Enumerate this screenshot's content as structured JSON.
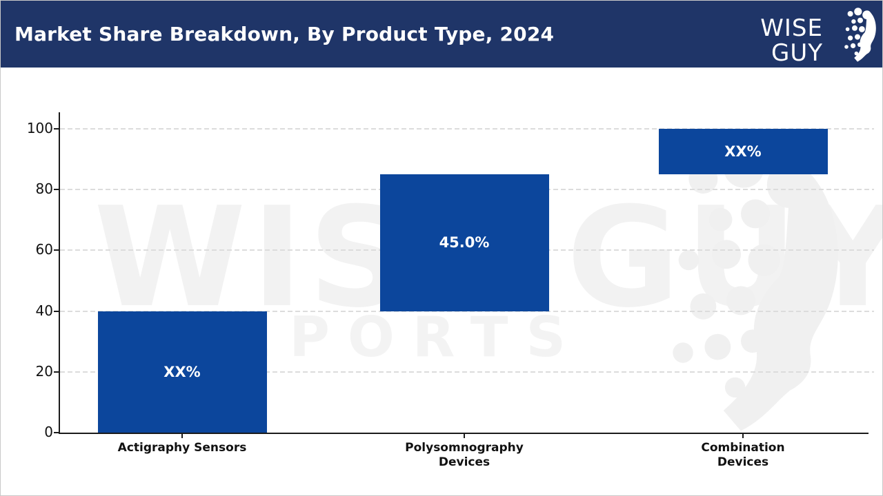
{
  "header": {
    "title": "Market Share Breakdown, By Product Type, 2024",
    "logo_line1": "WISE GUY",
    "logo_line2": "REPORTS"
  },
  "watermark": {
    "line1": "WISE GUY",
    "line2": "REPORTS"
  },
  "colors": {
    "header_bg": "#1f3568",
    "bar": "#0c469c",
    "grid": "#dcdcdc",
    "axis": "#1a1a1a",
    "bar_label": "#ffffff"
  },
  "chart_data": {
    "type": "bar",
    "variant": "stacked_waterfall_single_series",
    "title": "Market Share Breakdown, By Product Type, 2024",
    "categories": [
      "Actigraphy Sensors",
      "Polysomnography\nDevices",
      "Combination\nDevices"
    ],
    "segments": [
      {
        "category": "Actigraphy Sensors",
        "start": 0,
        "end": 40,
        "label": "XX%"
      },
      {
        "category": "Polysomnography Devices",
        "start": 40,
        "end": 85,
        "label": "45.0%"
      },
      {
        "category": "Combination Devices",
        "start": 85,
        "end": 100,
        "label": "XX%"
      }
    ],
    "values_pct": [
      40,
      45,
      15
    ],
    "bar_labels": [
      "XX%",
      "45.0%",
      "XX%"
    ],
    "ylim": [
      0,
      100
    ],
    "yticks": [
      0,
      20,
      40,
      60,
      80,
      100
    ],
    "grid": "horizontal-dashed",
    "legend": "none",
    "bar_color": "#0c469c"
  }
}
